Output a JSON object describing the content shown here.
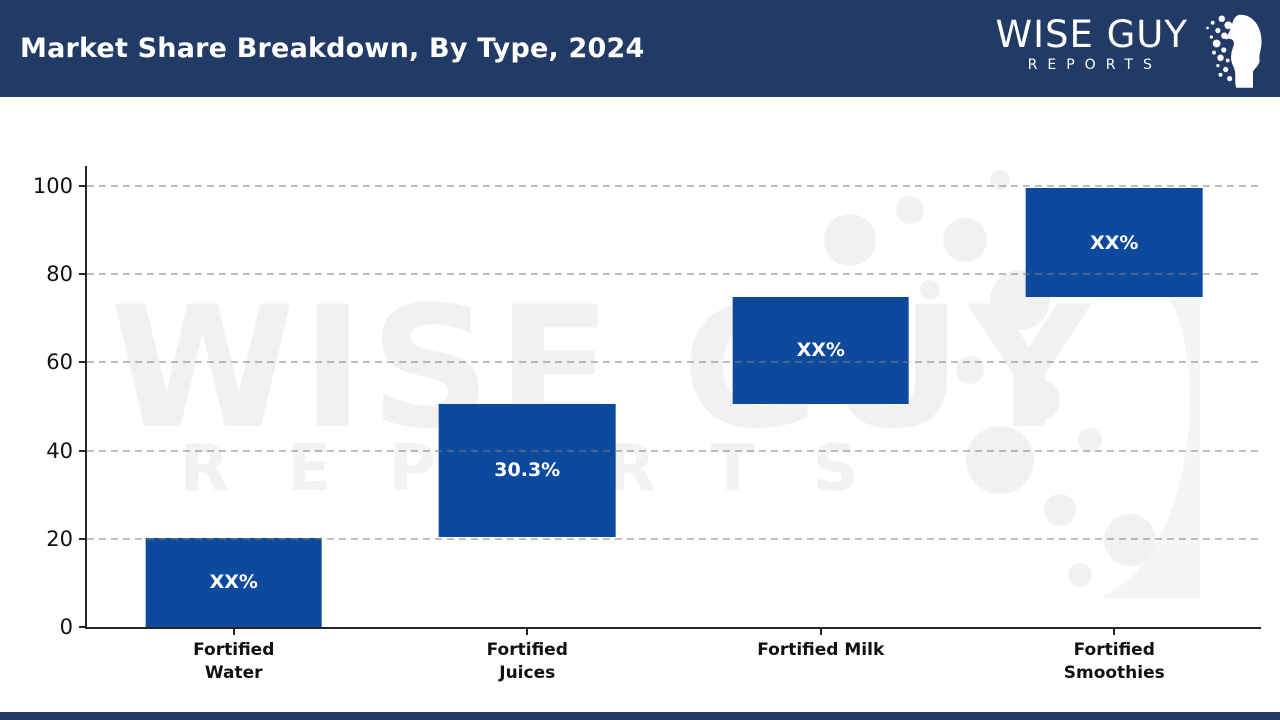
{
  "header": {
    "title": "Market Share Breakdown, By Type, 2024",
    "logo": {
      "line1": "WISE GUY",
      "line2": "REPORTS"
    }
  },
  "watermark": {
    "line1": "WISE GUY",
    "line2": "REPORTS"
  },
  "colors": {
    "header_bg": "#223A66",
    "bar_fill": "#0D4A9E",
    "bar_label": "#FFFFFF",
    "axis": "#262626",
    "grid": "#C2C2C2",
    "watermark": "#F1F1F1"
  },
  "chart_data": {
    "type": "bar",
    "subtype": "waterfall",
    "title": "Market Share Breakdown, By Type, 2024",
    "categories": [
      "Fortified Water",
      "Fortified Juices",
      "Fortified Milk",
      "Fortified Smoothies"
    ],
    "bars": [
      {
        "category": "Fortified Water",
        "start": 0,
        "end": 20.2,
        "label": "XX%"
      },
      {
        "category": "Fortified Juices",
        "start": 20.4,
        "end": 50.6,
        "label": "30.3%"
      },
      {
        "category": "Fortified Milk",
        "start": 50.6,
        "end": 74.8,
        "label": "XX%"
      },
      {
        "category": "Fortified Smoothies",
        "start": 74.8,
        "end": 99.5,
        "label": "XX%"
      }
    ],
    "yticks": [
      0,
      20,
      40,
      60,
      80,
      100
    ],
    "ylim": [
      0,
      100
    ],
    "xlabel": "",
    "ylabel": "",
    "grid": "horizontal-dashed",
    "legend": false
  }
}
